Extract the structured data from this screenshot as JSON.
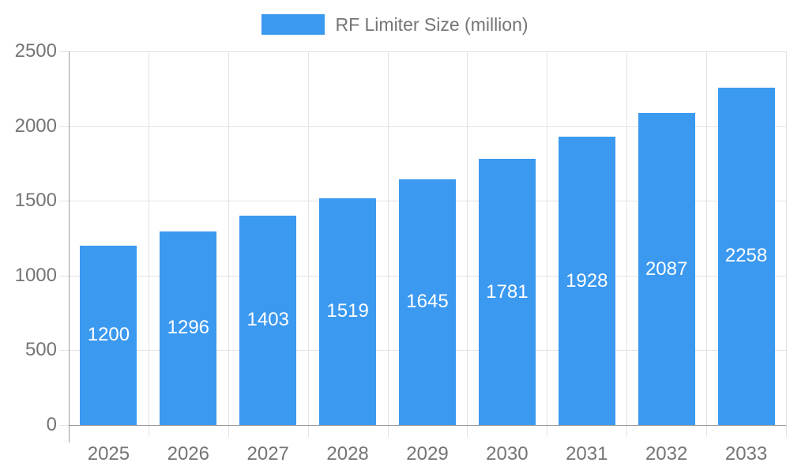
{
  "chart_data": {
    "type": "bar",
    "title": "",
    "categories": [
      "2025",
      "2026",
      "2027",
      "2028",
      "2029",
      "2030",
      "2031",
      "2032",
      "2033"
    ],
    "series": [
      {
        "name": "RF Limiter Size (million)",
        "values": [
          1200,
          1296,
          1403,
          1519,
          1645,
          1781,
          1928,
          2087,
          2258
        ]
      }
    ],
    "y_ticks": [
      0,
      500,
      1000,
      1500,
      2000,
      2500
    ],
    "ylim": [
      0,
      2500
    ],
    "xlabel": "",
    "ylabel": "",
    "grid": true,
    "legend_position": "top",
    "colors": {
      "bar": "#3B99F0",
      "bar_value_label": "#ffffff",
      "grid": "#e3e3e3",
      "axis_line": "#9a9a9a",
      "axis_text": "#757575",
      "legend_text": "#757575",
      "background": "#ffffff"
    }
  }
}
